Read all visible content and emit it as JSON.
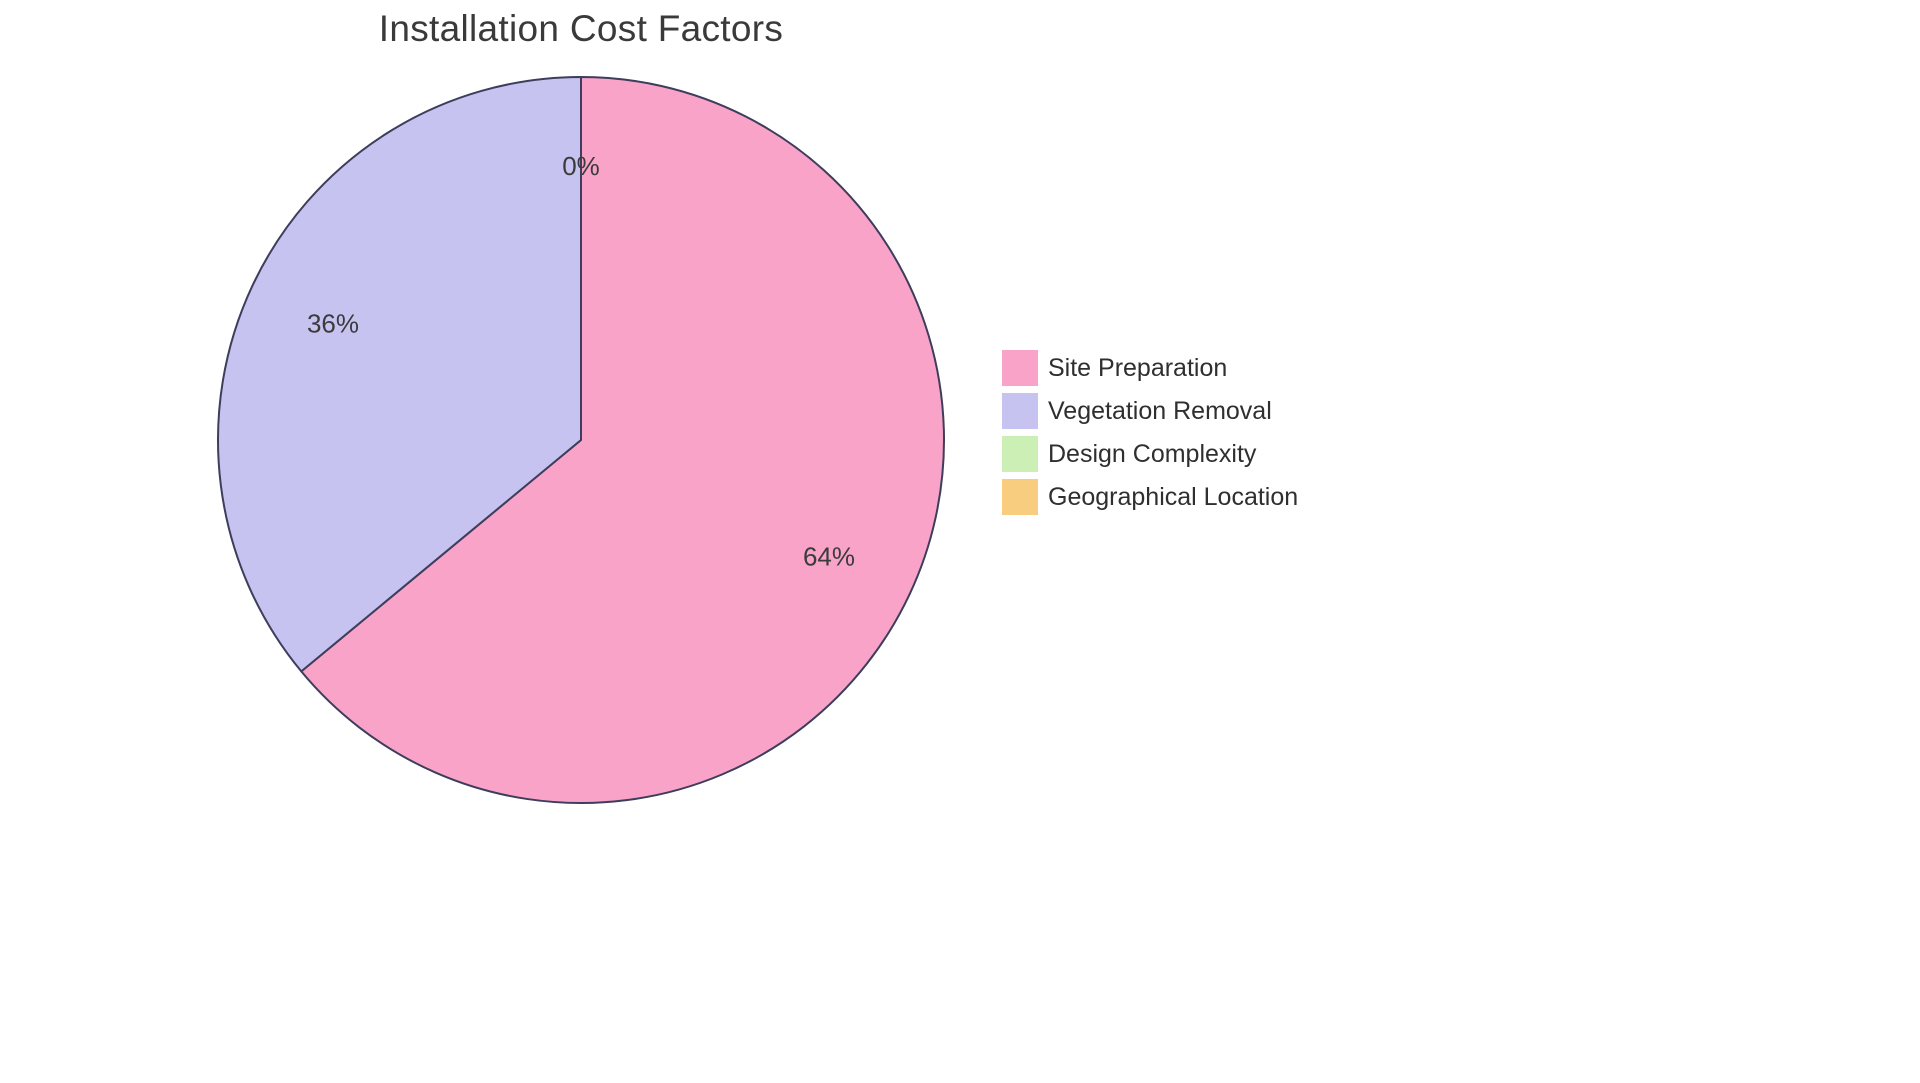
{
  "page": {
    "background_color": "#FFFFFF"
  },
  "chart_data": {
    "type": "pie",
    "title": "Installation Cost Factors",
    "labels": [
      "Site Preparation",
      "Vegetation Removal",
      "Design Complexity",
      "Geographical Location"
    ],
    "values": [
      64,
      36,
      0,
      0
    ],
    "value_labels": [
      "64%",
      "36%",
      "0%",
      "0%"
    ],
    "colors": [
      "#F9A3C9",
      "#C7C3F1",
      "#CBEFB4",
      "#F8CD80"
    ],
    "stroke_color": "#3D3D5C",
    "stroke_width": 2,
    "label_color": "#3B3B3B",
    "start_angle_deg": 0,
    "direction": "clockwise",
    "legend_position": "right",
    "legend_entries": [
      "Site Preparation",
      "Vegetation Removal",
      "Design Complexity",
      "Geographical Location"
    ]
  }
}
